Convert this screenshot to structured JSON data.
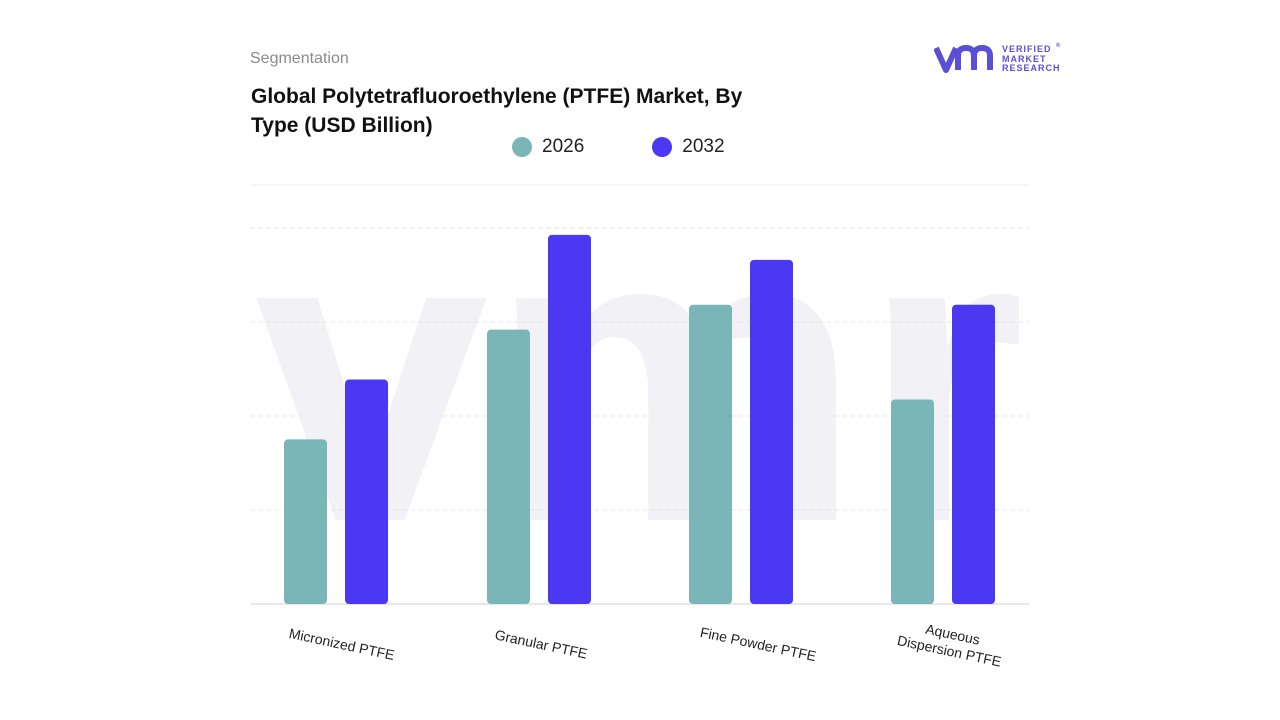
{
  "header": {
    "section_label": "Segmentation",
    "title": "Global Polytetrafluoroethylene (PTFE) Market, By Type (USD Billion)"
  },
  "logo": {
    "mark": "vmr",
    "line1": "VERIFIED",
    "line2": "MARKET",
    "line3": "RESEARCH",
    "registered": "®"
  },
  "colors": {
    "series_2026": "#7ab5b7",
    "series_2032": "#4b38f3",
    "grid": "#e3e3e3",
    "watermark": "#f1f1f6",
    "logo": "#5b4fd6"
  },
  "chart_data": {
    "type": "bar",
    "title": "Global Polytetrafluoroethylene (PTFE) Market, By Type (USD Billion)",
    "categories": [
      "Micronized PTFE",
      "Granular PTFE",
      "Fine Powder PTFE",
      "Aqueous\nDispersion PTFE"
    ],
    "series": [
      {
        "name": "2026",
        "values": [
          1.65,
          2.75,
          3.0,
          2.05
        ]
      },
      {
        "name": "2032",
        "values": [
          2.25,
          3.7,
          3.45,
          3.0
        ]
      }
    ],
    "ylim": [
      0,
      4.2
    ],
    "grid": true,
    "legend_position": "top-center"
  }
}
